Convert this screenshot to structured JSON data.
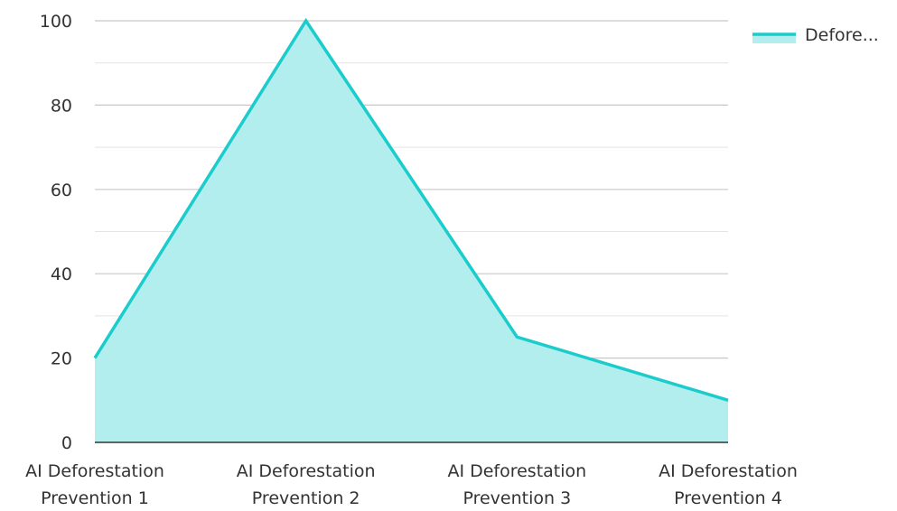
{
  "chart_data": {
    "type": "area",
    "categories": [
      [
        "AI Deforestation",
        "Prevention 1"
      ],
      [
        "AI Deforestation",
        "Prevention 2"
      ],
      [
        "AI Deforestation",
        "Prevention 3"
      ],
      [
        "AI Deforestation",
        "Prevention 4"
      ]
    ],
    "series": [
      {
        "name": "Defore...",
        "values": [
          20,
          100,
          25,
          10
        ]
      }
    ],
    "ylim": [
      0,
      100
    ],
    "yticks": [
      "0",
      "20",
      "40",
      "60",
      "80",
      "100"
    ],
    "title": "",
    "xlabel": "",
    "ylabel": "",
    "grid": true,
    "legend_position": "top-right",
    "colors": {
      "line": "#1ccccc",
      "fill": "#b2eeee",
      "grid_major": "#c8c8c8",
      "grid_minor": "#e4e4e4",
      "axis": "#333333"
    }
  }
}
